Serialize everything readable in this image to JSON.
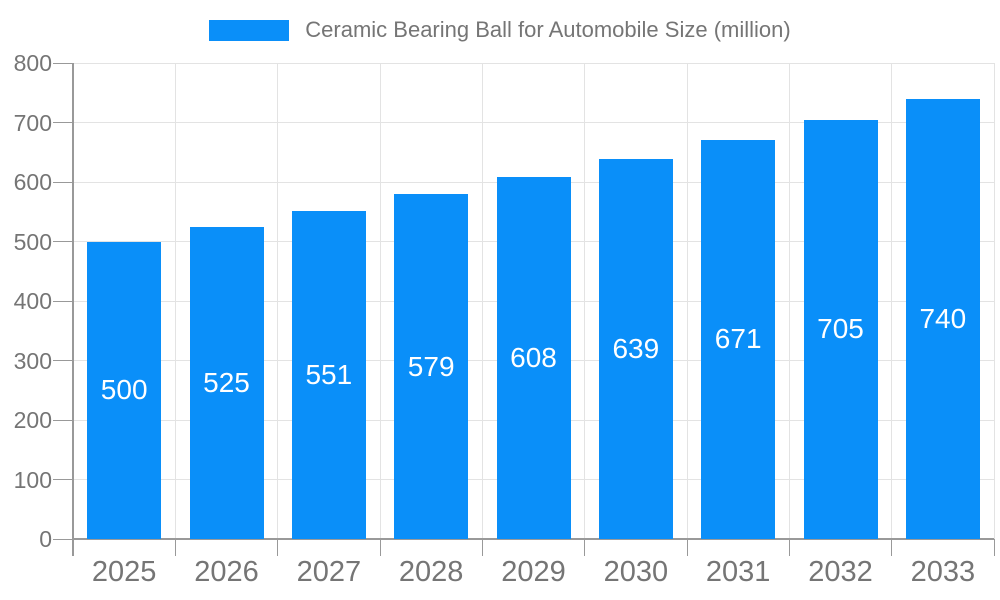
{
  "chart_data": {
    "type": "bar",
    "title": "Ceramic Bearing Ball for Automobile Size (million)",
    "categories": [
      "2025",
      "2026",
      "2027",
      "2028",
      "2029",
      "2030",
      "2031",
      "2032",
      "2033"
    ],
    "series": [
      {
        "name": "Ceramic Bearing Ball for Automobile Size (million)",
        "values": [
          500,
          525,
          551,
          579,
          608,
          639,
          671,
          705,
          740
        ]
      }
    ],
    "value_labels": [
      "500",
      "525",
      "551",
      "579",
      "608",
      "639",
      "671",
      "705",
      "740"
    ],
    "ylim": [
      0,
      800
    ],
    "y_ticks": [
      0,
      100,
      200,
      300,
      400,
      500,
      600,
      700,
      800
    ],
    "grid": "on",
    "legend_position": "top-center",
    "colors": {
      "bar": "#0a8ff9",
      "bar_value_text": "#ffffff",
      "axis_text": "#757575",
      "axis_line": "#999999",
      "gridline": "#e3e3e3",
      "background": "#ffffff"
    }
  }
}
